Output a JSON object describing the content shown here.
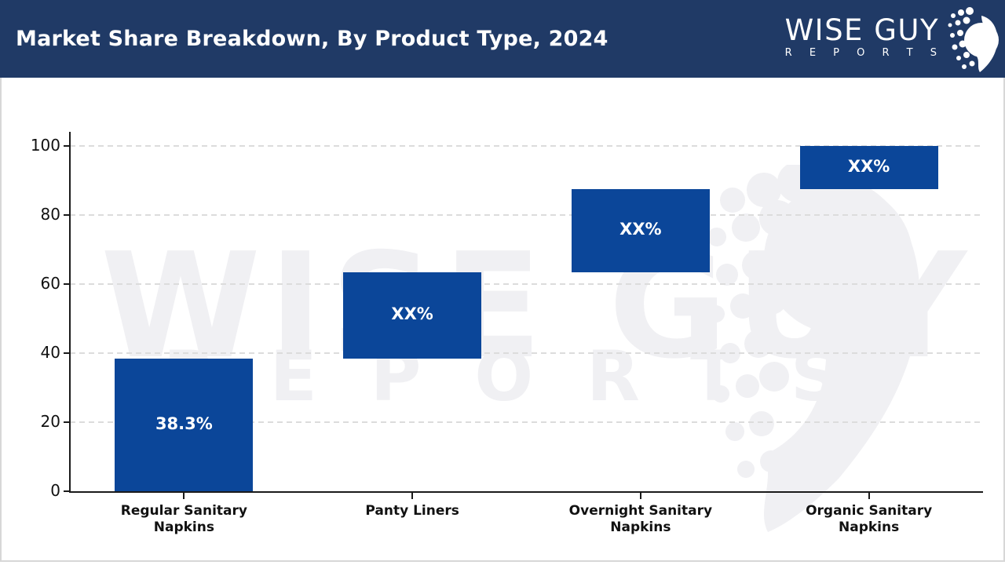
{
  "header": {
    "title": "Market Share Breakdown, By Product Type, 2024",
    "logo": {
      "name": "WISE GUY",
      "sub": "R E P O R T S"
    }
  },
  "watermark": {
    "line1": "WISE GUY",
    "line2": "REPORTS"
  },
  "chart_data": {
    "type": "bar",
    "subtype": "waterfall",
    "title": "Market Share Breakdown, By Product Type, 2024",
    "categories": [
      [
        "Regular Sanitary",
        "Napkins"
      ],
      [
        "Panty Liners"
      ],
      [
        "Overnight Sanitary",
        "Napkins"
      ],
      [
        "Organic Sanitary",
        "Napkins"
      ]
    ],
    "segments": [
      {
        "label": "38.3%",
        "start": 0,
        "end": 38.3,
        "value": 38.3
      },
      {
        "label": "XX%",
        "start": 38.3,
        "end": 63.5,
        "value": 25.2
      },
      {
        "label": "XX%",
        "start": 63.5,
        "end": 87.5,
        "value": 24.0
      },
      {
        "label": "XX%",
        "start": 87.5,
        "end": 100.0,
        "value": 12.5
      }
    ],
    "yticks": [
      0,
      20,
      40,
      60,
      80,
      100
    ],
    "ylim": [
      0,
      104
    ],
    "grid": "dashed-horizontal",
    "legend": "none"
  },
  "colors": {
    "header_bg": "#203a66",
    "bar": "#0b4699",
    "watermark": "#f0f0f3",
    "grid": "#dcdcdc",
    "axis": "#1a1a1a",
    "frame": "#d7d7d7"
  }
}
